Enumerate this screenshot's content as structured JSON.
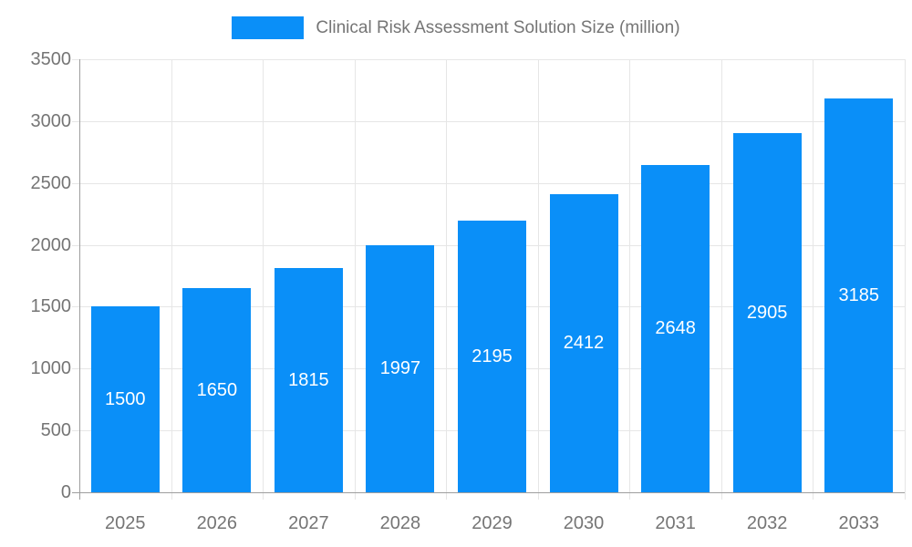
{
  "legend": {
    "label": "Clinical Risk Assessment Solution Size (million)"
  },
  "chart_data": {
    "type": "bar",
    "title": "Clinical Risk Assessment Solution Size (million)",
    "xlabel": "",
    "ylabel": "",
    "categories": [
      "2025",
      "2026",
      "2027",
      "2028",
      "2029",
      "2030",
      "2031",
      "2032",
      "2033"
    ],
    "values": [
      1500,
      1650,
      1815,
      1997,
      2195,
      2412,
      2648,
      2905,
      3185
    ],
    "value_labels": [
      "1500",
      "1650",
      "1815",
      "1997",
      "2195",
      "2412",
      "2648",
      "2905",
      "3185"
    ],
    "ylim": [
      0,
      3500
    ],
    "yticks": [
      0,
      500,
      1000,
      1500,
      2000,
      2500,
      3000,
      3500
    ],
    "grid": true,
    "legend_position": "top",
    "colors": {
      "bar": "#0a8ff8",
      "value_label": "#ffffff",
      "gridline": "#e6e6e6",
      "axis_line": "#9e9e9e",
      "tick_text": "#757575",
      "legend_text": "#757575"
    }
  }
}
